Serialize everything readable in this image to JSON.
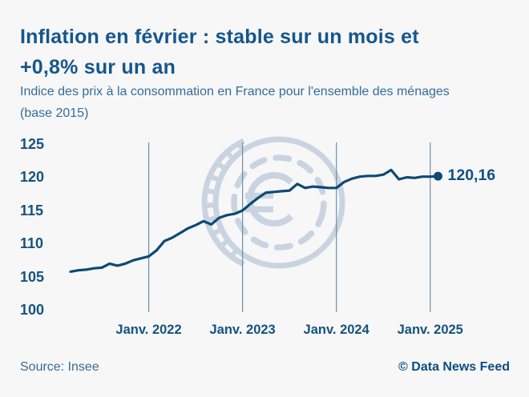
{
  "header": {
    "title_line1": "Inflation en février : stable sur un mois et",
    "title_line2": "+0,8% sur un an",
    "subtitle_line1": "Indice des prix à la consommation en France pour l'ensemble des ménages",
    "subtitle_line2": "(base 2015)"
  },
  "footer": {
    "source": "Source: Insee",
    "credit": "© Data News Feed"
  },
  "chart_data": {
    "type": "line",
    "title": "Indice des prix à la consommation en France pour l'ensemble des ménages (base 2015)",
    "months": [
      "2021-03",
      "2021-04",
      "2021-05",
      "2021-06",
      "2021-07",
      "2021-08",
      "2021-09",
      "2021-10",
      "2021-11",
      "2021-12",
      "2022-01",
      "2022-02",
      "2022-03",
      "2022-04",
      "2022-05",
      "2022-06",
      "2022-07",
      "2022-08",
      "2022-09",
      "2022-10",
      "2022-11",
      "2022-12",
      "2023-01",
      "2023-02",
      "2023-03",
      "2023-04",
      "2023-05",
      "2023-06",
      "2023-07",
      "2023-08",
      "2023-09",
      "2023-10",
      "2023-11",
      "2023-12",
      "2024-01",
      "2024-02",
      "2024-03",
      "2024-04",
      "2024-05",
      "2024-06",
      "2024-07",
      "2024-08",
      "2024-09",
      "2024-10",
      "2024-11",
      "2024-12",
      "2025-01",
      "2025-02"
    ],
    "values": [
      105.8,
      106.0,
      106.1,
      106.3,
      106.4,
      107.0,
      106.7,
      107.0,
      107.5,
      107.8,
      108.1,
      109.0,
      110.4,
      110.9,
      111.6,
      112.3,
      112.8,
      113.4,
      112.9,
      113.9,
      114.3,
      114.5,
      115.0,
      116.0,
      116.9,
      117.7,
      117.8,
      117.9,
      118.0,
      119.0,
      118.4,
      118.6,
      118.5,
      118.4,
      118.4,
      119.3,
      119.8,
      120.1,
      120.2,
      120.2,
      120.4,
      121.1,
      119.7,
      120.0,
      119.9,
      120.1,
      120.1,
      120.16
    ],
    "y_ticks": [
      125,
      120,
      115,
      110,
      105,
      100
    ],
    "ylim": [
      100,
      125
    ],
    "x_ticks": [
      {
        "month": "2022-01",
        "label": "Janv. 2022"
      },
      {
        "month": "2023-01",
        "label": "Janv. 2023"
      },
      {
        "month": "2024-01",
        "label": "Janv. 2024"
      },
      {
        "month": "2025-01",
        "label": "Janv. 2025"
      }
    ],
    "last_value": 120.16,
    "last_value_label": "120,16",
    "grid": "vertical-year-lines",
    "legend": "none",
    "watermark_icon": "euro-coin",
    "colors": {
      "line": "#0d4a74",
      "grid": "#6b8fae",
      "tick_label": "#14537f",
      "watermark": "#c9d4e0",
      "accent_title": "#15568c"
    }
  }
}
